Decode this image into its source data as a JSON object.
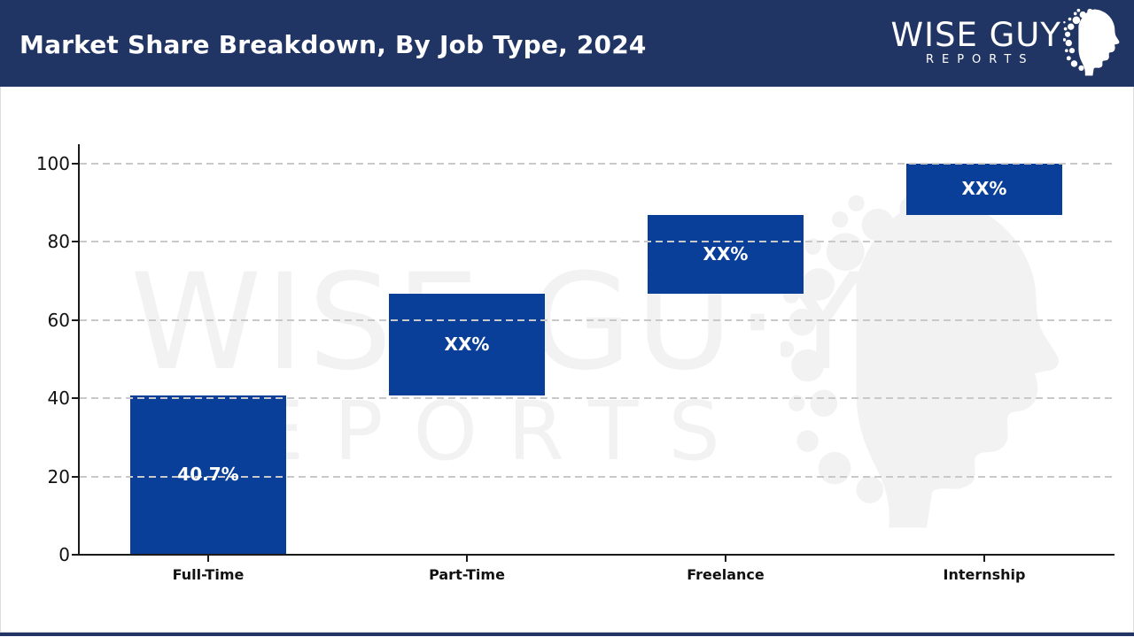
{
  "header": {
    "title": "Market Share Breakdown, By Job Type, 2024",
    "brand": {
      "name": "WISE GUY",
      "subname": "REPORTS"
    }
  },
  "watermark": {
    "line1": "WISE GU·Y·",
    "line2": "REPORTS"
  },
  "colors": {
    "header_bg": "#213564",
    "bar": "#0a3f99",
    "bar_label": "#ffffff",
    "axis": "#1a1a1a",
    "grid": "#c9c9c9",
    "tick_label": "#111111",
    "watermark": "#f2f2f2"
  },
  "chart_data": {
    "type": "bar",
    "subtype": "waterfall",
    "title": "Market Share Breakdown, By Job Type, 2024",
    "categories": [
      "Full-Time",
      "Part-Time",
      "Freelance",
      "Internship"
    ],
    "segments": [
      {
        "category": "Full-Time",
        "start": 0,
        "end": 40.7,
        "label": "40.7%"
      },
      {
        "category": "Part-Time",
        "start": 40.7,
        "end": 66.7,
        "label": "XX%"
      },
      {
        "category": "Freelance",
        "start": 66.7,
        "end": 86.8,
        "label": "XX%"
      },
      {
        "category": "Internship",
        "start": 86.8,
        "end": 100,
        "label": "XX%"
      }
    ],
    "yticks": [
      0,
      20,
      40,
      60,
      80,
      100
    ],
    "ylim": [
      0,
      105
    ],
    "grid": "horizontal-dashed",
    "legend": "none"
  }
}
